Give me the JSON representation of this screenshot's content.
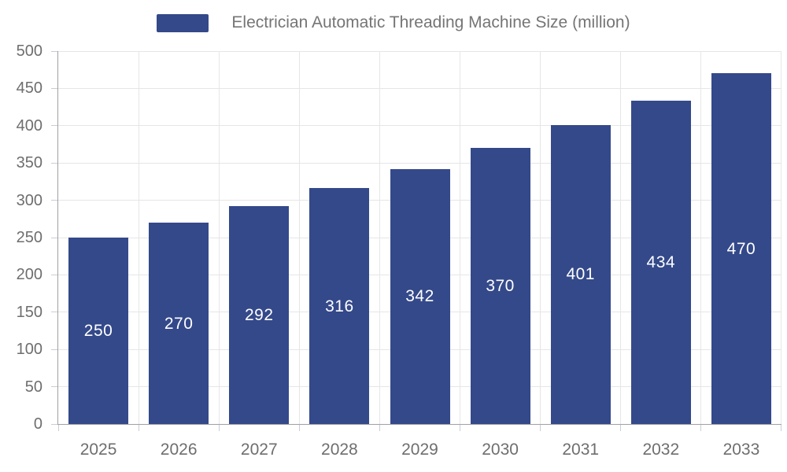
{
  "legend": {
    "label": "Electrician Automatic Threading Machine Size (million)"
  },
  "colors": {
    "bar": "#34498a",
    "title_text": "#757575",
    "axis_text": "#6e6e6e",
    "axis_line": "#a1a1a6",
    "grid_line": "#e6e6e6",
    "tick_line": "#c9cdd6",
    "value_text": "#ffffff",
    "background": "#ffffff"
  },
  "chart_data": {
    "type": "bar",
    "title": "Electrician Automatic Threading Machine Size (million)",
    "legend_entries": [
      "Electrician Automatic Threading Machine Size (million)"
    ],
    "legend_position": "top",
    "categories": [
      "2025",
      "2026",
      "2027",
      "2028",
      "2029",
      "2030",
      "2031",
      "2032",
      "2033"
    ],
    "values": [
      250,
      270,
      292,
      316,
      342,
      370,
      401,
      434,
      470
    ],
    "xlabel": "",
    "ylabel": "",
    "ylim": [
      0,
      500
    ],
    "ytick_step": 50,
    "yticks": [
      0,
      50,
      100,
      150,
      200,
      250,
      300,
      350,
      400,
      450,
      500
    ],
    "grid": true,
    "bar_labels_inside": true
  }
}
